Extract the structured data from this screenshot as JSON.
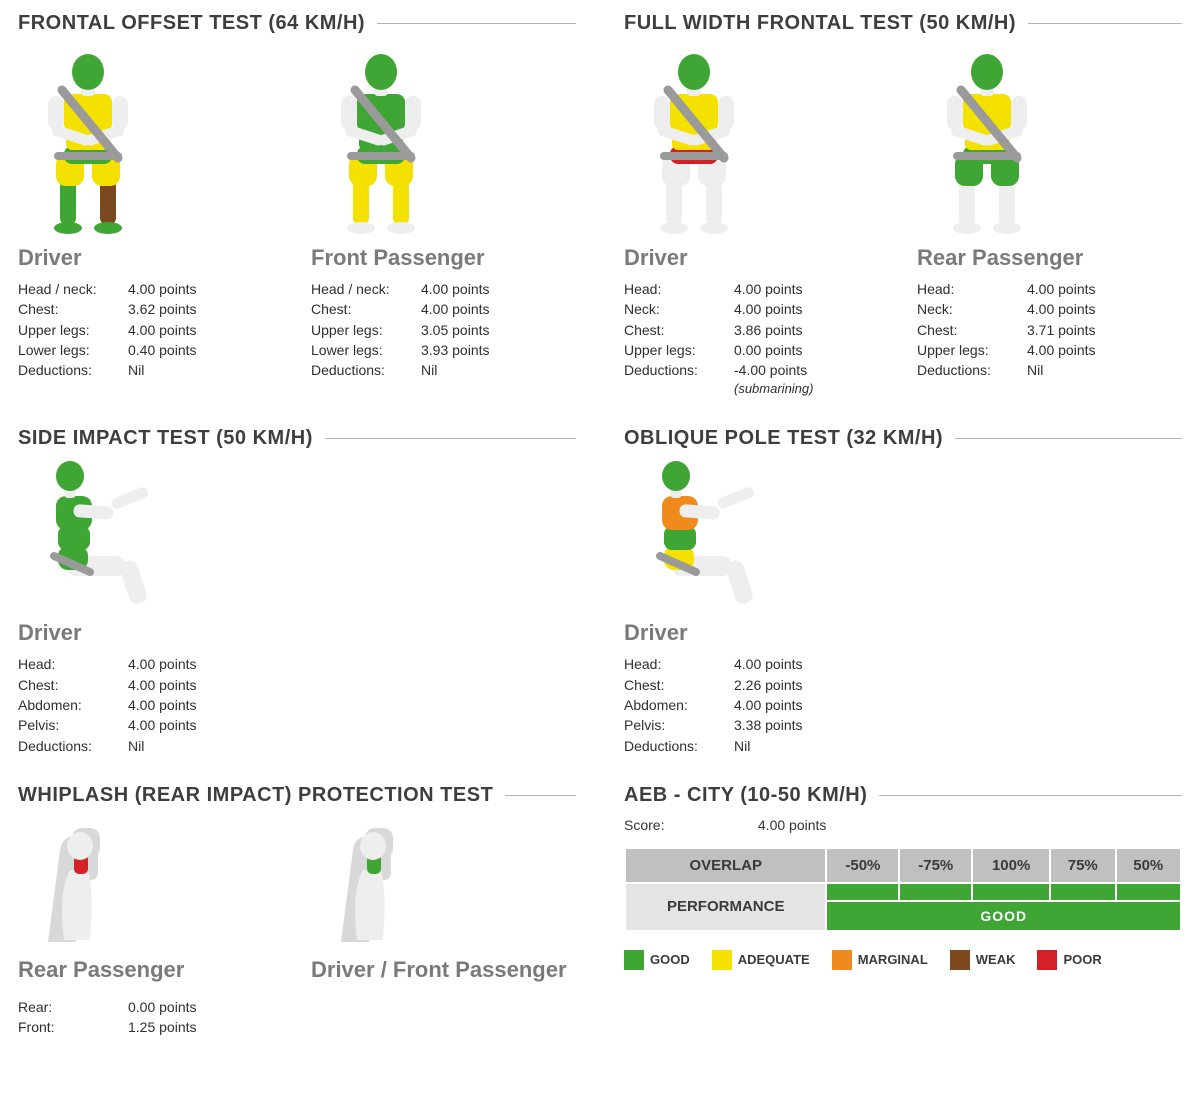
{
  "colors": {
    "good": "#3fa535",
    "adequate": "#f4e100",
    "marginal": "#f08a1d",
    "weak": "#7a4a1e",
    "poor": "#d62027",
    "white": "#eeeeee",
    "grey_belt": "#9a9a9a",
    "title_grey": "#3e3e3e",
    "label_grey": "#7a7a7a",
    "seat_grey": "#d8d8d8"
  },
  "legend": {
    "items": [
      {
        "label": "GOOD",
        "color": "#3fa535"
      },
      {
        "label": "ADEQUATE",
        "color": "#f4e100"
      },
      {
        "label": "MARGINAL",
        "color": "#f08a1d"
      },
      {
        "label": "WEAK",
        "color": "#7a4a1e"
      },
      {
        "label": "POOR",
        "color": "#d62027"
      }
    ]
  },
  "sections": {
    "frontal_offset": {
      "title": "FRONTAL OFFSET TEST (64 KM/H)",
      "occupants": [
        {
          "label": "Driver",
          "pose": "seated_front",
          "parts": {
            "head": "#3fa535",
            "neck": "#eeeeee",
            "chest": "#f4e100",
            "abdomen": "#f4e100",
            "pelvis": "#3fa535",
            "upper_leg_l": "#f4e100",
            "upper_leg_r": "#f4e100",
            "lower_leg_l": "#3fa535",
            "lower_leg_r": "#7a4a1e",
            "foot_l": "#3fa535",
            "foot_r": "#3fa535",
            "upper_arm": "#eeeeee",
            "forearm": "#eeeeee"
          },
          "rows": [
            {
              "lbl": "Head / neck:",
              "val": "4.00 points"
            },
            {
              "lbl": "Chest:",
              "val": "3.62 points"
            },
            {
              "lbl": "Upper legs:",
              "val": "4.00 points"
            },
            {
              "lbl": "Lower legs:",
              "val": "0.40 points"
            },
            {
              "lbl": "Deductions:",
              "val": "Nil"
            }
          ]
        },
        {
          "label": "Front Passenger",
          "pose": "seated_front",
          "parts": {
            "head": "#3fa535",
            "neck": "#eeeeee",
            "chest": "#3fa535",
            "abdomen": "#3fa535",
            "pelvis": "#3fa535",
            "upper_leg_l": "#f4e100",
            "upper_leg_r": "#f4e100",
            "lower_leg_l": "#f4e100",
            "lower_leg_r": "#f4e100",
            "foot_l": "#eeeeee",
            "foot_r": "#eeeeee",
            "upper_arm": "#eeeeee",
            "forearm": "#eeeeee"
          },
          "rows": [
            {
              "lbl": "Head / neck:",
              "val": "4.00 points"
            },
            {
              "lbl": "Chest:",
              "val": "4.00 points"
            },
            {
              "lbl": "Upper legs:",
              "val": "3.05 points"
            },
            {
              "lbl": "Lower legs:",
              "val": "3.93 points"
            },
            {
              "lbl": "Deductions:",
              "val": "Nil"
            }
          ]
        }
      ]
    },
    "full_width": {
      "title": "FULL WIDTH FRONTAL TEST (50 KM/H)",
      "occupants": [
        {
          "label": "Driver",
          "pose": "seated_front",
          "parts": {
            "head": "#3fa535",
            "neck": "#eeeeee",
            "chest": "#f4e100",
            "abdomen": "#f4e100",
            "pelvis": "#d62027",
            "upper_leg_l": "#eeeeee",
            "upper_leg_r": "#eeeeee",
            "lower_leg_l": "#eeeeee",
            "lower_leg_r": "#eeeeee",
            "foot_l": "#eeeeee",
            "foot_r": "#eeeeee",
            "upper_arm": "#eeeeee",
            "forearm": "#eeeeee"
          },
          "rows": [
            {
              "lbl": "Head:",
              "val": "4.00 points"
            },
            {
              "lbl": "Neck:",
              "val": "4.00 points"
            },
            {
              "lbl": "Chest:",
              "val": "3.86 points"
            },
            {
              "lbl": "Upper legs:",
              "val": "0.00 points"
            },
            {
              "lbl": "Deductions:",
              "val": "-4.00 points"
            }
          ],
          "note": "(submarining)"
        },
        {
          "label": "Rear Passenger",
          "pose": "seated_front",
          "parts": {
            "head": "#3fa535",
            "neck": "#eeeeee",
            "chest": "#f4e100",
            "abdomen": "#f4e100",
            "pelvis": "#3fa535",
            "upper_leg_l": "#3fa535",
            "upper_leg_r": "#3fa535",
            "lower_leg_l": "#eeeeee",
            "lower_leg_r": "#eeeeee",
            "foot_l": "#eeeeee",
            "foot_r": "#eeeeee",
            "upper_arm": "#eeeeee",
            "forearm": "#eeeeee"
          },
          "rows": [
            {
              "lbl": "Head:",
              "val": "4.00 points"
            },
            {
              "lbl": "Neck:",
              "val": "4.00 points"
            },
            {
              "lbl": "Chest:",
              "val": "3.71 points"
            },
            {
              "lbl": "Upper legs:",
              "val": "4.00 points"
            },
            {
              "lbl": "Deductions:",
              "val": "Nil"
            }
          ]
        }
      ]
    },
    "side_impact": {
      "title": "SIDE IMPACT TEST (50 KM/H)",
      "occupants": [
        {
          "label": "Driver",
          "pose": "seated_side",
          "parts": {
            "head": "#3fa535",
            "neck": "#eeeeee",
            "chest": "#3fa535",
            "abdomen": "#3fa535",
            "pelvis": "#3fa535",
            "upper_leg": "#eeeeee",
            "lower_leg": "#eeeeee",
            "upper_arm": "#eeeeee",
            "forearm": "#eeeeee"
          },
          "rows": [
            {
              "lbl": "Head:",
              "val": "4.00 points"
            },
            {
              "lbl": "Chest:",
              "val": "4.00 points"
            },
            {
              "lbl": "Abdomen:",
              "val": "4.00 points"
            },
            {
              "lbl": "Pelvis:",
              "val": "4.00 points"
            },
            {
              "lbl": "Deductions:",
              "val": "Nil"
            }
          ]
        }
      ]
    },
    "oblique_pole": {
      "title": "OBLIQUE POLE TEST (32 KM/H)",
      "occupants": [
        {
          "label": "Driver",
          "pose": "seated_side",
          "parts": {
            "head": "#3fa535",
            "neck": "#eeeeee",
            "chest": "#f08a1d",
            "abdomen": "#3fa535",
            "pelvis": "#f4e100",
            "upper_leg": "#eeeeee",
            "lower_leg": "#eeeeee",
            "upper_arm": "#eeeeee",
            "forearm": "#eeeeee"
          },
          "rows": [
            {
              "lbl": "Head:",
              "val": "4.00 points"
            },
            {
              "lbl": "Chest:",
              "val": "2.26 points"
            },
            {
              "lbl": "Abdomen:",
              "val": "4.00 points"
            },
            {
              "lbl": "Pelvis:",
              "val": "3.38 points"
            },
            {
              "lbl": "Deductions:",
              "val": "Nil"
            }
          ]
        }
      ]
    },
    "whiplash": {
      "title": "WHIPLASH (REAR IMPACT) PROTECTION TEST",
      "occupants": [
        {
          "label": "Rear Passenger",
          "pose": "whiplash",
          "neck_color": "#d62027"
        },
        {
          "label": "Driver / Front Passenger",
          "pose": "whiplash",
          "neck_color": "#3fa535"
        }
      ],
      "rows": [
        {
          "lbl": "Rear:",
          "val": "0.00 points"
        },
        {
          "lbl": "Front:",
          "val": "1.25 points"
        }
      ]
    },
    "aeb_city": {
      "title": "AEB - CITY (10-50 KM/H)",
      "score_label": "Score:",
      "score_value": "4.00 points",
      "overlap_label": "OVERLAP",
      "performance_label": "PERFORMANCE",
      "good_label": "GOOD",
      "columns": [
        "-50%",
        "-75%",
        "100%",
        "75%",
        "50%"
      ],
      "cell_color": "#3fa535"
    }
  }
}
